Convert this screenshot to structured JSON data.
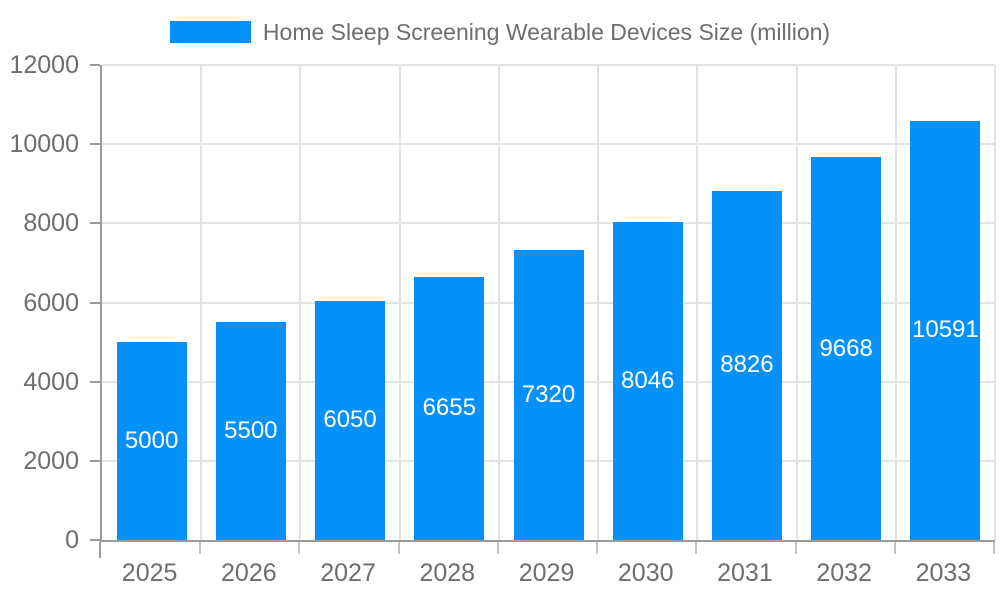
{
  "chart_data": {
    "type": "bar",
    "title": "Home Sleep Screening Wearable Devices Size (million)",
    "legend": {
      "position": "top",
      "entries": [
        "Home Sleep Screening Wearable Devices Size (million)"
      ]
    },
    "categories": [
      "2025",
      "2026",
      "2027",
      "2028",
      "2029",
      "2030",
      "2031",
      "2032",
      "2033"
    ],
    "series": [
      {
        "name": "Home Sleep Screening Wearable Devices Size (million)",
        "values": [
          5000,
          5500,
          6050,
          6655,
          7320,
          8046,
          8826,
          9668,
          10591
        ]
      }
    ],
    "bar_value_labels": [
      "5000",
      "5500",
      "6050",
      "6655",
      "7320",
      "8046",
      "8826",
      "9668",
      "10591"
    ],
    "xlabel": "",
    "ylabel": "",
    "ylim": [
      0,
      12000
    ],
    "y_ticks": [
      0,
      2000,
      4000,
      6000,
      8000,
      10000,
      12000
    ],
    "y_tick_labels": [
      "0",
      "2000",
      "4000",
      "6000",
      "8000",
      "10000",
      "12000"
    ],
    "grid": true
  },
  "colors": {
    "bar": "#0591FB",
    "bar_label_text": "#FFFFFF",
    "legend_text": "#6E6E6E",
    "tick_text": "#6E6E6E",
    "gridline": "#E3E3E3",
    "axis_line": "#9A9A9A",
    "tick_mark": "#C4C4C4",
    "background": "#FFFFFF"
  }
}
